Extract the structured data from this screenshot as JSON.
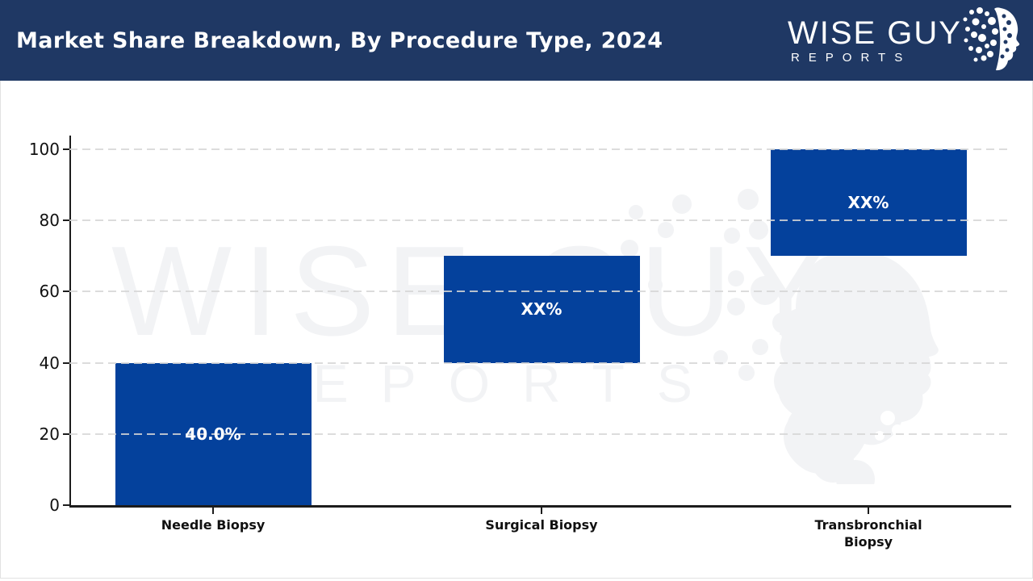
{
  "header": {
    "title": "Market Share Breakdown, By Procedure Type, 2024",
    "logo": {
      "line1": "WISE GUY",
      "line2": "REPORTS"
    }
  },
  "watermark": {
    "line1": "WISE GUY",
    "line2": "REPORTS"
  },
  "chart_data": {
    "type": "bar",
    "subtype": "floating-stacked-breakdown",
    "title": "Market Share Breakdown, By Procedure Type, 2024",
    "categories": [
      "Needle Biopsy",
      "Surgical Biopsy",
      "Transbronchial Biopsy"
    ],
    "bars": [
      {
        "category": "Needle Biopsy",
        "start": 0,
        "end": 40,
        "label": "40.0%"
      },
      {
        "category": "Surgical Biopsy",
        "start": 40,
        "end": 70,
        "label": "XX%"
      },
      {
        "category": "Transbronchial Biopsy",
        "start": 70,
        "end": 100,
        "label": "XX%"
      }
    ],
    "xlabel": "",
    "ylabel": "",
    "ylim": [
      0,
      100
    ],
    "yticks": [
      0,
      20,
      40,
      60,
      80,
      100
    ],
    "grid": "horizontal-dashed",
    "legend": "none",
    "bar_color": "#04419c",
    "bar_label_color": "#ffffff"
  },
  "colors": {
    "header_bg": "#1f3864",
    "bar": "#04419c",
    "axis": "#1c1c1c",
    "gridline": "#d6d6d6",
    "watermark": "#f2f3f5",
    "background": "#ffffff"
  }
}
